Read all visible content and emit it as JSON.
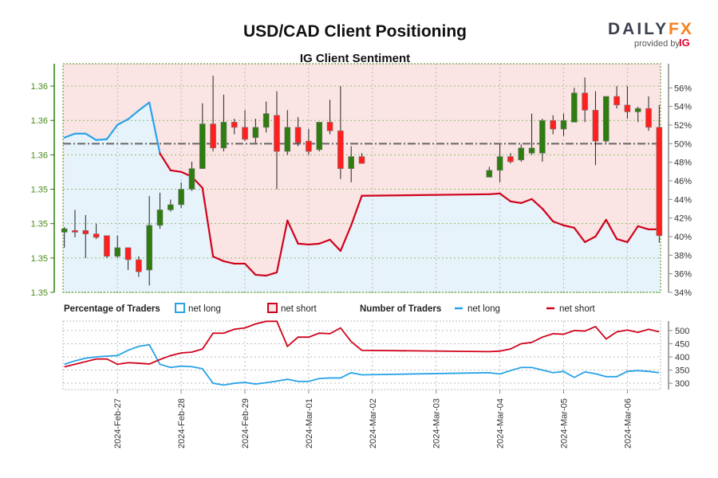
{
  "header": {
    "title": "USD/CAD Client Positioning",
    "subtitle": "IG Client Sentiment"
  },
  "logo": {
    "brand_a": "DAILY",
    "brand_b": "FX",
    "provided_by": "provided by",
    "ig": "IG"
  },
  "colors": {
    "green": "#2e7d0f",
    "red": "#ff1f1f",
    "blue": "#29a3e8",
    "darkred": "#d0021b",
    "pink_bg": "#fbe4e4",
    "blue_bg": "#e6f3fb"
  },
  "legend": {
    "pct_title": "Percentage of Traders",
    "pct_long": "net long",
    "pct_short": "net short",
    "num_title": "Number of Traders",
    "num_long": "net long",
    "num_short": "net short"
  },
  "chart_data": [
    {
      "type": "candlestick",
      "title": "USD/CAD Client Positioning",
      "subtitle": "IG Client Sentiment",
      "x_unit": "hours since 2024-02-27 00:00",
      "xlim": [
        -20.5,
        204.5
      ],
      "price_ticks": [
        1.347,
        1.349,
        1.351,
        1.353,
        1.355,
        1.357,
        1.359
      ],
      "price_tick_labels": [
        "1.35",
        "1.35",
        "1.35",
        "1.35",
        "1.36",
        "1.36",
        "1.36"
      ],
      "price_lim": [
        1.347,
        1.3603
      ],
      "pct_ticks": [
        34,
        36,
        38,
        40,
        42,
        44,
        46,
        48,
        50,
        52,
        54,
        56
      ],
      "pct_tick_labels": [
        "34%",
        "36%",
        "38%",
        "40%",
        "42%",
        "44%",
        "46%",
        "48%",
        "50%",
        "52%",
        "54%",
        "56%"
      ],
      "pct_lim": [
        34,
        58.6
      ],
      "date_ticks": [
        0,
        24,
        48,
        72,
        96,
        120,
        144,
        168,
        192
      ],
      "date_labels": [
        "2024-Feb-27",
        "2024-Feb-28",
        "2024-Feb-29",
        "2024-Mar-01",
        "2024-Mar-02",
        "2024-Mar-03",
        "2024-Mar-04",
        "2024-Mar-05",
        "2024-Mar-06"
      ],
      "x": [
        -20,
        -16,
        -12,
        -8,
        -4,
        0,
        4,
        8,
        12,
        16,
        20,
        24,
        28,
        32,
        36,
        40,
        44,
        48,
        52,
        56,
        60,
        64,
        68,
        72,
        76,
        80,
        84,
        88,
        92,
        140,
        144,
        148,
        152,
        156,
        160,
        164,
        168,
        172,
        176,
        180,
        184,
        188,
        192,
        196,
        200,
        204
      ],
      "ohlc": [
        [
          1.3505,
          1.3508,
          1.3496,
          1.3507
        ],
        [
          1.3506,
          1.3518,
          1.3502,
          1.3505
        ],
        [
          1.3506,
          1.3515,
          1.349,
          1.3504
        ],
        [
          1.3504,
          1.351,
          1.3501,
          1.3502
        ],
        [
          1.3503,
          1.3503,
          1.349,
          1.3491
        ],
        [
          1.3491,
          1.3503,
          1.349,
          1.3496
        ],
        [
          1.3496,
          1.3496,
          1.3483,
          1.3489
        ],
        [
          1.3489,
          1.3491,
          1.3479,
          1.3482
        ],
        [
          1.3483,
          1.3526,
          1.3474,
          1.3509
        ],
        [
          1.3509,
          1.3528,
          1.3507,
          1.3518
        ],
        [
          1.3518,
          1.3524,
          1.3517,
          1.3521
        ],
        [
          1.3521,
          1.3534,
          1.3519,
          1.353
        ],
        [
          1.353,
          1.3546,
          1.3529,
          1.3542
        ],
        [
          1.3542,
          1.358,
          1.3542,
          1.3568
        ],
        [
          1.3568,
          1.3596,
          1.3552,
          1.3554
        ],
        [
          1.3554,
          1.3585,
          1.3552,
          1.3569
        ],
        [
          1.3569,
          1.3571,
          1.3562,
          1.3566
        ],
        [
          1.3566,
          1.3576,
          1.3558,
          1.3559
        ],
        [
          1.356,
          1.3571,
          1.3557,
          1.3566
        ],
        [
          1.3566,
          1.3581,
          1.3563,
          1.3574
        ],
        [
          1.3573,
          1.3587,
          1.353,
          1.3552
        ],
        [
          1.3552,
          1.3576,
          1.355,
          1.3566
        ],
        [
          1.3566,
          1.3572,
          1.3555,
          1.3557
        ],
        [
          1.3558,
          1.3565,
          1.355,
          1.3552
        ],
        [
          1.3553,
          1.3569,
          1.3552,
          1.3569
        ],
        [
          1.3569,
          1.3582,
          1.3562,
          1.3564
        ],
        [
          1.3564,
          1.359,
          1.3536,
          1.3542
        ],
        [
          1.3542,
          1.3555,
          1.3534,
          1.3549
        ],
        [
          1.3549,
          1.3551,
          1.3545,
          1.3545
        ],
        [
          1.3537,
          1.3543,
          1.3537,
          1.3541
        ],
        [
          1.3541,
          1.3556,
          1.3534,
          1.3549
        ],
        [
          1.3549,
          1.3551,
          1.3545,
          1.3546
        ],
        [
          1.3547,
          1.3556,
          1.3546,
          1.3554
        ],
        [
          1.3551,
          1.3574,
          1.355,
          1.3554
        ],
        [
          1.3551,
          1.3571,
          1.3546,
          1.357
        ],
        [
          1.357,
          1.3573,
          1.3562,
          1.3565
        ],
        [
          1.3565,
          1.3574,
          1.3561,
          1.357
        ],
        [
          1.3569,
          1.3589,
          1.3569,
          1.3586
        ],
        [
          1.3586,
          1.3595,
          1.3569,
          1.3576
        ],
        [
          1.3576,
          1.3587,
          1.3544,
          1.3558
        ],
        [
          1.3558,
          1.3584,
          1.3557,
          1.3584
        ],
        [
          1.3584,
          1.359,
          1.3577,
          1.3579
        ],
        [
          1.3579,
          1.359,
          1.3571,
          1.3575
        ],
        [
          1.3575,
          1.3578,
          1.3569,
          1.3577
        ],
        [
          1.3577,
          1.3584,
          1.3564,
          1.3566
        ],
        [
          1.3566,
          1.3579,
          1.3499,
          1.3503
        ]
      ],
      "net_long_pct": [
        50.65,
        51.08,
        51.08,
        50.39,
        50.48,
        52.03,
        52.63,
        53.57,
        54.43,
        48.94,
        47.13,
        46.96,
        46.45,
        45.24,
        37.86,
        37.35,
        37.09,
        37.09,
        35.89,
        35.8,
        36.15,
        41.73,
        39.24,
        39.15,
        39.24,
        39.67,
        38.46,
        41.21,
        44.39,
        44.56,
        44.64,
        43.79,
        43.61,
        44.04,
        43.01,
        41.64,
        41.21,
        40.95,
        39.41,
        40.01,
        41.81,
        39.75,
        39.41,
        41.12,
        40.78,
        40.78
      ]
    },
    {
      "type": "line",
      "title": "Number of Traders",
      "ylim": [
        276,
        536
      ],
      "yticks": [
        300,
        350,
        400,
        450,
        500
      ],
      "ytick_labels": [
        "300",
        "350",
        "400",
        "450",
        "500"
      ],
      "series": [
        {
          "name": "net long",
          "values": [
            372,
            385,
            395,
            400,
            403,
            405,
            425,
            440,
            446,
            372,
            360,
            365,
            363,
            355,
            300,
            293,
            300,
            303,
            297,
            302,
            308,
            315,
            307,
            307,
            318,
            320,
            320,
            340,
            332,
            340,
            335,
            348,
            360,
            360,
            350,
            340,
            345,
            322,
            343,
            336,
            325,
            325,
            345,
            348,
            345,
            340
          ]
        },
        {
          "name": "net short",
          "values": [
            362,
            372,
            382,
            392,
            392,
            372,
            378,
            376,
            373,
            390,
            405,
            415,
            418,
            430,
            490,
            490,
            505,
            510,
            525,
            535,
            535,
            440,
            475,
            475,
            490,
            488,
            510,
            458,
            425,
            420,
            422,
            430,
            450,
            455,
            475,
            488,
            486,
            500,
            498,
            515,
            468,
            495,
            502,
            493,
            505,
            495
          ]
        }
      ]
    }
  ]
}
